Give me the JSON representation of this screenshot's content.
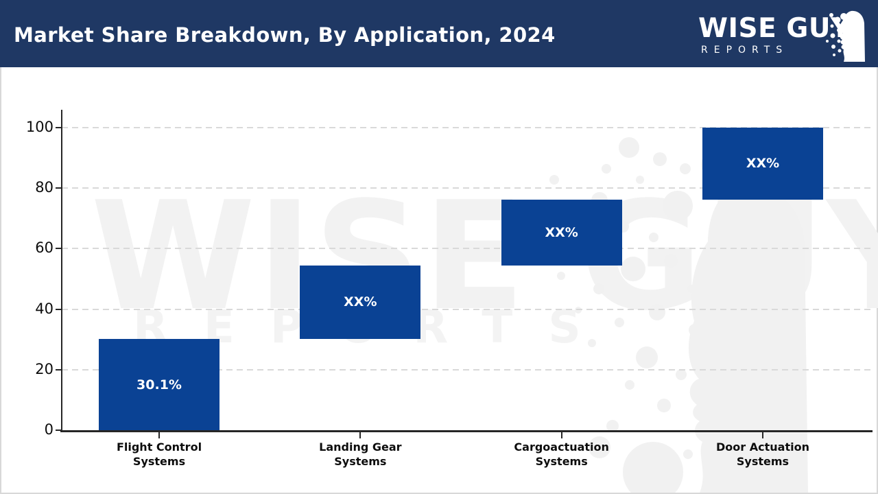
{
  "header": {
    "title": "Market Share Breakdown, By Application, 2024",
    "bg_color": "#1f3864",
    "brand": {
      "line1": "WISE GUY",
      "line2": "R E P O R T S"
    }
  },
  "watermark": {
    "line1": "WISE GUY",
    "line2": "REPORTS"
  },
  "chart_data": {
    "type": "bar",
    "subtype": "waterfall",
    "title": "Market Share Breakdown, By Application, 2024",
    "categories": [
      [
        "Flight Control",
        "Systems"
      ],
      [
        "Landing Gear",
        "Systems"
      ],
      [
        "Cargoactuation",
        "Systems"
      ],
      [
        "Door Actuation",
        "Systems"
      ]
    ],
    "bars": [
      {
        "start": 0,
        "end": 30.1,
        "segment_value": 30.1,
        "value_label": "30.1%"
      },
      {
        "start": 30.1,
        "end": 54.5,
        "segment_value": 24.4,
        "value_label": "XX%"
      },
      {
        "start": 54.5,
        "end": 76.3,
        "segment_value": 21.8,
        "value_label": "XX%"
      },
      {
        "start": 76.3,
        "end": 100,
        "segment_value": 23.7,
        "value_label": "XX%"
      }
    ],
    "y_ticks": [
      0,
      20,
      40,
      60,
      80,
      100
    ],
    "ylim": [
      0,
      106
    ],
    "xlabel": "",
    "ylabel": "",
    "bar_color": "#0a4294",
    "grid": "horizontal-dashed",
    "legend": "none"
  }
}
